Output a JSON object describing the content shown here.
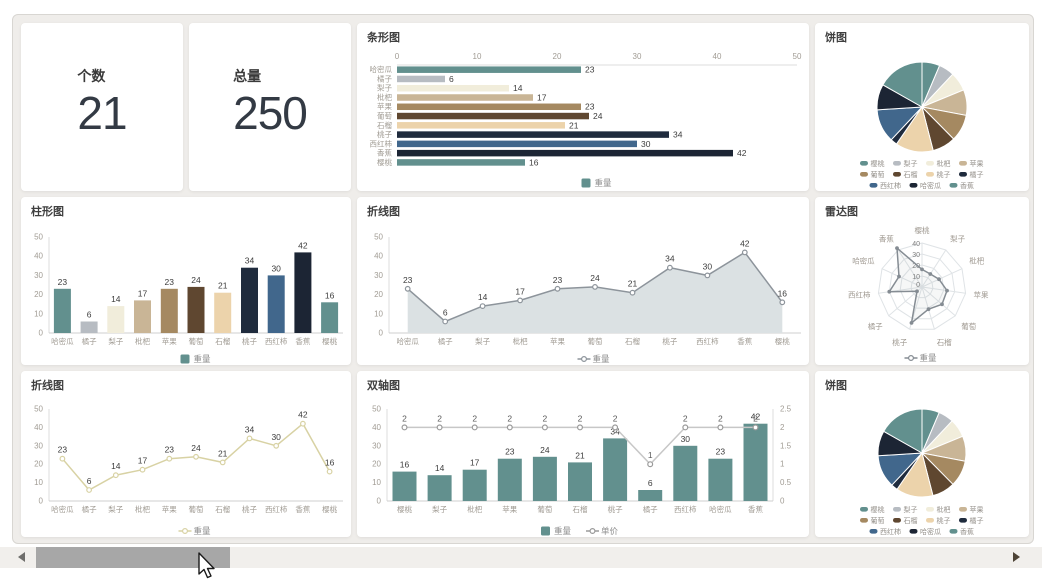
{
  "palette": [
    "#62908e",
    "#b7bcc2",
    "#f1eddb",
    "#c9b596",
    "#a58961",
    "#5f4730",
    "#ecd3ab",
    "#1f2b3d",
    "#41678c",
    "#1c2534",
    "#62908e"
  ],
  "colors": {
    "series_teal": "#62908e",
    "area_line": "#8d949b",
    "area_fill": "#dbe1e3",
    "khaki_line": "#d8d2a4",
    "dual_line": "#c7c7c7",
    "axis_text": "#a19c94",
    "value_text": "#3c3c3c"
  },
  "stats": [
    {
      "label": "个数",
      "value": "21"
    },
    {
      "label": "总量",
      "value": "250"
    }
  ],
  "chart_data": [
    {
      "id": "bar-horizontal",
      "type": "bar",
      "orientation": "horizontal",
      "title": "条形图",
      "categories": [
        "哈密瓜",
        "橘子",
        "梨子",
        "枇杷",
        "苹果",
        "葡萄",
        "石榴",
        "桃子",
        "西红柿",
        "香蕉",
        "樱桃"
      ],
      "values": [
        23,
        6,
        14,
        17,
        23,
        24,
        21,
        34,
        30,
        42,
        16
      ],
      "xlim": [
        0,
        50
      ],
      "xticks": [
        0,
        10,
        20,
        30,
        40,
        50
      ],
      "legend": [
        "重量"
      ]
    },
    {
      "id": "pie-top",
      "type": "pie",
      "title": "饼图",
      "categories": [
        "樱桃",
        "梨子",
        "枇杷",
        "苹果",
        "葡萄",
        "石榴",
        "桃子",
        "橘子",
        "西红柿",
        "哈密瓜",
        "香蕉"
      ],
      "values": [
        16,
        14,
        17,
        23,
        24,
        21,
        34,
        6,
        30,
        23,
        42
      ],
      "legend_rows": [
        4,
        4,
        3
      ]
    },
    {
      "id": "bar-vertical",
      "type": "bar",
      "orientation": "vertical",
      "title": "柱形图",
      "categories": [
        "哈密瓜",
        "橘子",
        "梨子",
        "枇杷",
        "苹果",
        "葡萄",
        "石榴",
        "桃子",
        "西红柿",
        "香蕉",
        "樱桃"
      ],
      "values": [
        23,
        6,
        14,
        17,
        23,
        24,
        21,
        34,
        30,
        42,
        16
      ],
      "ylim": [
        0,
        50
      ],
      "yticks": [
        0,
        10,
        20,
        30,
        40,
        50
      ],
      "legend": [
        "重量"
      ]
    },
    {
      "id": "line-area",
      "type": "area",
      "title": "折线图",
      "categories": [
        "哈密瓜",
        "橘子",
        "梨子",
        "枇杷",
        "苹果",
        "葡萄",
        "石榴",
        "桃子",
        "西红柿",
        "香蕉",
        "樱桃"
      ],
      "values": [
        23,
        6,
        14,
        17,
        23,
        24,
        21,
        34,
        30,
        42,
        16
      ],
      "ylim": [
        0,
        50
      ],
      "yticks": [
        0,
        10,
        20,
        30,
        40,
        50
      ],
      "legend": [
        "重量"
      ]
    },
    {
      "id": "radar",
      "type": "radar",
      "title": "雷达图",
      "categories": [
        "樱桃",
        "梨子",
        "枇杷",
        "苹果",
        "葡萄",
        "石榴",
        "桃子",
        "橘子",
        "西红柿",
        "哈密瓜",
        "香蕉"
      ],
      "values": [
        16,
        14,
        17,
        23,
        24,
        21,
        34,
        6,
        30,
        23,
        42
      ],
      "rmax": 40,
      "rticks": [
        0,
        10,
        20,
        30,
        40
      ],
      "legend": [
        "重量"
      ]
    },
    {
      "id": "line-plain",
      "type": "line",
      "title": "折线图",
      "categories": [
        "哈密瓜",
        "橘子",
        "梨子",
        "枇杷",
        "苹果",
        "葡萄",
        "石榴",
        "桃子",
        "西红柿",
        "香蕉",
        "樱桃"
      ],
      "values": [
        23,
        6,
        14,
        17,
        23,
        24,
        21,
        34,
        30,
        42,
        16
      ],
      "ylim": [
        0,
        50
      ],
      "yticks": [
        0,
        10,
        20,
        30,
        40,
        50
      ],
      "legend": [
        "重量"
      ]
    },
    {
      "id": "dual-axis",
      "type": "combo",
      "title": "双轴图",
      "categories": [
        "樱桃",
        "梨子",
        "枇杷",
        "苹果",
        "葡萄",
        "石榴",
        "桃子",
        "橘子",
        "西红柿",
        "哈密瓜",
        "香蕉"
      ],
      "series": [
        {
          "name": "重量",
          "type": "bar",
          "axis": "left",
          "values": [
            16,
            14,
            17,
            23,
            24,
            21,
            34,
            6,
            30,
            23,
            42
          ]
        },
        {
          "name": "单价",
          "type": "line",
          "axis": "right",
          "values": [
            2,
            2,
            2,
            2,
            2,
            2,
            2,
            1,
            2,
            2,
            2
          ]
        }
      ],
      "ylim_left": [
        0,
        50
      ],
      "yticks_left": [
        0,
        10,
        20,
        30,
        40,
        50
      ],
      "ylim_right": [
        0,
        2.5
      ],
      "yticks_right": [
        "0",
        "0.5",
        "1",
        "1.5",
        "2",
        "2.5"
      ],
      "legend": [
        "重量",
        "单价"
      ]
    },
    {
      "id": "pie-bottom",
      "type": "pie",
      "title": "饼图",
      "categories": [
        "樱桃",
        "梨子",
        "枇杷",
        "苹果",
        "葡萄",
        "石榴",
        "桃子",
        "橘子",
        "西红柿",
        "哈密瓜",
        "香蕉"
      ],
      "values": [
        16,
        14,
        17,
        23,
        24,
        21,
        34,
        6,
        30,
        23,
        42
      ],
      "legend_rows": [
        4,
        4,
        3
      ]
    }
  ],
  "scrollbar": {
    "left_arrow_icon": "scroll-left-icon",
    "right_arrow_icon": "scroll-right-icon"
  }
}
